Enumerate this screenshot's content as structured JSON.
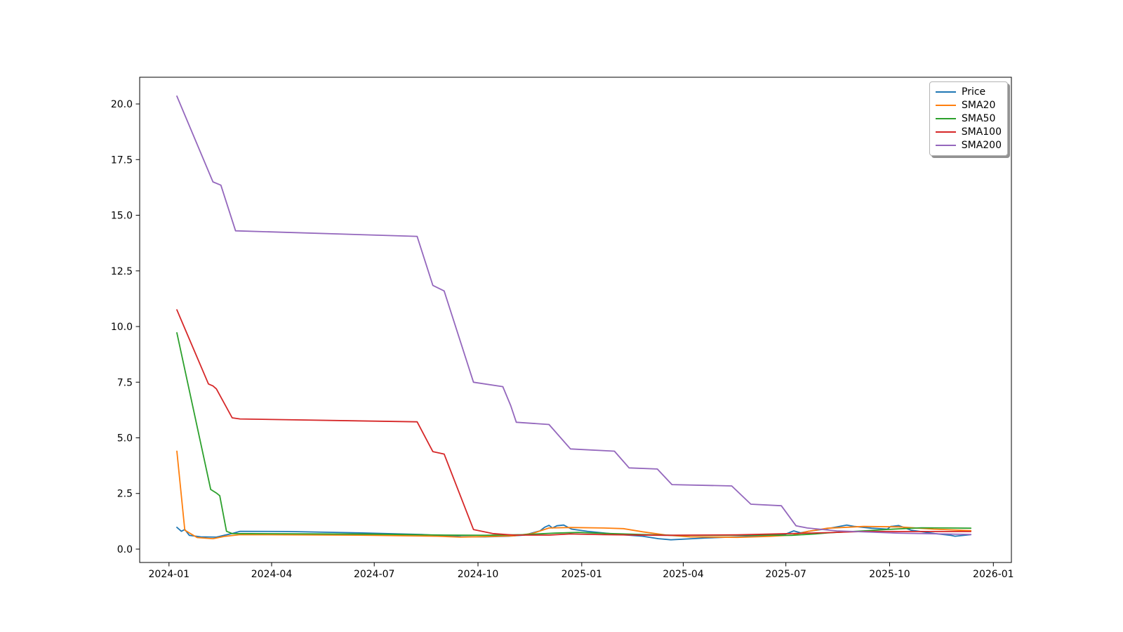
{
  "chart_data": {
    "type": "line",
    "title": "",
    "xlabel": "",
    "ylabel": "",
    "grid": false,
    "background": "#ffffff",
    "legend": {
      "position": "upper right",
      "shadow": true,
      "entries": [
        "Price",
        "SMA20",
        "SMA50",
        "SMA100",
        "SMA200"
      ]
    },
    "x_axis": {
      "range": [
        "2023-12-06",
        "2026-01-17"
      ],
      "tick_dates": [
        "2024-01-01",
        "2024-04-01",
        "2024-07-01",
        "2024-10-01",
        "2025-01-01",
        "2025-04-01",
        "2025-07-01",
        "2025-10-01",
        "2026-01-01"
      ],
      "tick_labels": [
        "2024-01",
        "2024-04",
        "2024-07",
        "2024-10",
        "2025-01",
        "2025-04",
        "2025-07",
        "2025-10",
        "2026-01"
      ]
    },
    "y_axis": {
      "range": [
        -0.6,
        21.2
      ],
      "ticks": [
        0.0,
        2.5,
        5.0,
        7.5,
        10.0,
        12.5,
        15.0,
        17.5,
        20.0
      ],
      "tick_labels": [
        "0.0",
        "2.5",
        "5.0",
        "7.5",
        "10.0",
        "12.5",
        "15.0",
        "17.5",
        "20.0"
      ]
    },
    "series": [
      {
        "name": "Price",
        "color": "#1f77b4",
        "points": [
          [
            "2024-01-08",
            0.98
          ],
          [
            "2024-01-12",
            0.8
          ],
          [
            "2024-01-15",
            0.88
          ],
          [
            "2024-01-19",
            0.62
          ],
          [
            "2024-01-29",
            0.55
          ],
          [
            "2024-02-12",
            0.54
          ],
          [
            "2024-02-19",
            0.62
          ],
          [
            "2024-02-26",
            0.7
          ],
          [
            "2024-03-04",
            0.8
          ],
          [
            "2024-04-15",
            0.79
          ],
          [
            "2024-06-17",
            0.73
          ],
          [
            "2024-08-12",
            0.66
          ],
          [
            "2024-09-02",
            0.6
          ],
          [
            "2024-09-16",
            0.56
          ],
          [
            "2024-10-07",
            0.55
          ],
          [
            "2024-10-28",
            0.58
          ],
          [
            "2024-11-11",
            0.63
          ],
          [
            "2024-11-25",
            0.82
          ],
          [
            "2024-11-29",
            0.98
          ],
          [
            "2024-12-03",
            1.07
          ],
          [
            "2024-12-06",
            0.95
          ],
          [
            "2024-12-10",
            1.05
          ],
          [
            "2024-12-16",
            1.08
          ],
          [
            "2024-12-23",
            0.9
          ],
          [
            "2025-01-06",
            0.8
          ],
          [
            "2025-02-03",
            0.66
          ],
          [
            "2025-02-24",
            0.58
          ],
          [
            "2025-03-10",
            0.47
          ],
          [
            "2025-03-21",
            0.42
          ],
          [
            "2025-04-21",
            0.5
          ],
          [
            "2025-05-19",
            0.55
          ],
          [
            "2025-06-16",
            0.62
          ],
          [
            "2025-06-30",
            0.66
          ],
          [
            "2025-07-08",
            0.82
          ],
          [
            "2025-07-14",
            0.73
          ],
          [
            "2025-07-21",
            0.8
          ],
          [
            "2025-08-07",
            0.92
          ],
          [
            "2025-08-24",
            1.08
          ],
          [
            "2025-08-31",
            1.02
          ],
          [
            "2025-09-15",
            0.94
          ],
          [
            "2025-09-29",
            0.9
          ],
          [
            "2025-10-02",
            1.02
          ],
          [
            "2025-10-09",
            1.06
          ],
          [
            "2025-10-20",
            0.85
          ],
          [
            "2025-11-10",
            0.7
          ],
          [
            "2025-11-24",
            0.62
          ],
          [
            "2025-11-28",
            0.58
          ],
          [
            "2025-12-12",
            0.65
          ]
        ]
      },
      {
        "name": "SMA20",
        "color": "#ff7f0e",
        "points": [
          [
            "2024-01-08",
            4.4
          ],
          [
            "2024-01-15",
            0.85
          ],
          [
            "2024-01-26",
            0.52
          ],
          [
            "2024-02-09",
            0.47
          ],
          [
            "2024-02-19",
            0.57
          ],
          [
            "2024-03-04",
            0.65
          ],
          [
            "2024-05-01",
            0.64
          ],
          [
            "2024-07-01",
            0.62
          ],
          [
            "2024-08-26",
            0.58
          ],
          [
            "2024-09-15",
            0.54
          ],
          [
            "2024-10-06",
            0.56
          ],
          [
            "2024-11-02",
            0.6
          ],
          [
            "2024-11-18",
            0.7
          ],
          [
            "2024-12-03",
            0.95
          ],
          [
            "2024-12-22",
            0.97
          ],
          [
            "2025-01-20",
            0.95
          ],
          [
            "2025-02-07",
            0.92
          ],
          [
            "2025-02-24",
            0.78
          ],
          [
            "2025-03-17",
            0.63
          ],
          [
            "2025-04-07",
            0.55
          ],
          [
            "2025-05-19",
            0.53
          ],
          [
            "2025-06-16",
            0.57
          ],
          [
            "2025-07-07",
            0.63
          ],
          [
            "2025-07-21",
            0.8
          ],
          [
            "2025-08-07",
            0.94
          ],
          [
            "2025-09-08",
            1.02
          ],
          [
            "2025-10-09",
            1.0
          ],
          [
            "2025-11-09",
            0.9
          ],
          [
            "2025-12-12",
            0.83
          ]
        ]
      },
      {
        "name": "SMA50",
        "color": "#2ca02c",
        "points": [
          [
            "2024-01-08",
            9.72
          ],
          [
            "2024-02-07",
            2.68
          ],
          [
            "2024-02-12",
            2.52
          ],
          [
            "2024-02-15",
            2.4
          ],
          [
            "2024-02-21",
            0.8
          ],
          [
            "2024-02-26",
            0.7
          ],
          [
            "2024-04-15",
            0.69
          ],
          [
            "2024-07-01",
            0.67
          ],
          [
            "2024-09-02",
            0.63
          ],
          [
            "2024-10-07",
            0.62
          ],
          [
            "2024-11-10",
            0.65
          ],
          [
            "2024-12-08",
            0.72
          ],
          [
            "2024-12-29",
            0.75
          ],
          [
            "2025-01-26",
            0.7
          ],
          [
            "2025-02-23",
            0.66
          ],
          [
            "2025-03-23",
            0.62
          ],
          [
            "2025-05-04",
            0.62
          ],
          [
            "2025-06-15",
            0.63
          ],
          [
            "2025-07-06",
            0.62
          ],
          [
            "2025-07-27",
            0.68
          ],
          [
            "2025-08-07",
            0.73
          ],
          [
            "2025-09-08",
            0.82
          ],
          [
            "2025-10-09",
            0.91
          ],
          [
            "2025-10-29",
            0.96
          ],
          [
            "2025-11-23",
            0.95
          ],
          [
            "2025-12-12",
            0.94
          ]
        ]
      },
      {
        "name": "SMA100",
        "color": "#d62728",
        "points": [
          [
            "2024-01-08",
            10.75
          ],
          [
            "2024-02-05",
            7.42
          ],
          [
            "2024-02-09",
            7.33
          ],
          [
            "2024-02-12",
            7.2
          ],
          [
            "2024-02-26",
            5.9
          ],
          [
            "2024-03-04",
            5.85
          ],
          [
            "2024-08-08",
            5.72
          ],
          [
            "2024-08-22",
            4.38
          ],
          [
            "2024-09-01",
            4.27
          ],
          [
            "2024-09-27",
            0.88
          ],
          [
            "2024-10-14",
            0.7
          ],
          [
            "2024-11-02",
            0.63
          ],
          [
            "2024-12-03",
            0.63
          ],
          [
            "2024-12-22",
            0.68
          ],
          [
            "2025-01-20",
            0.65
          ],
          [
            "2025-03-17",
            0.62
          ],
          [
            "2025-05-19",
            0.64
          ],
          [
            "2025-06-27",
            0.69
          ],
          [
            "2025-08-07",
            0.74
          ],
          [
            "2025-09-08",
            0.79
          ],
          [
            "2025-12-12",
            0.79
          ]
        ]
      },
      {
        "name": "SMA200",
        "color": "#9467bd",
        "points": [
          [
            "2024-01-08",
            20.35
          ],
          [
            "2024-02-09",
            16.5
          ],
          [
            "2024-02-16",
            16.35
          ],
          [
            "2024-02-29",
            14.3
          ],
          [
            "2024-08-08",
            14.05
          ],
          [
            "2024-08-22",
            11.85
          ],
          [
            "2024-09-01",
            11.6
          ],
          [
            "2024-09-27",
            7.5
          ],
          [
            "2024-10-23",
            7.3
          ],
          [
            "2024-10-30",
            6.45
          ],
          [
            "2024-11-04",
            5.7
          ],
          [
            "2024-12-03",
            5.6
          ],
          [
            "2024-12-22",
            4.5
          ],
          [
            "2025-01-30",
            4.4
          ],
          [
            "2025-02-12",
            3.65
          ],
          [
            "2025-03-09",
            3.6
          ],
          [
            "2025-03-22",
            2.9
          ],
          [
            "2025-05-14",
            2.84
          ],
          [
            "2025-05-31",
            2.02
          ],
          [
            "2025-06-27",
            1.95
          ],
          [
            "2025-07-10",
            1.05
          ],
          [
            "2025-07-20",
            0.95
          ],
          [
            "2025-08-15",
            0.82
          ],
          [
            "2025-10-09",
            0.72
          ],
          [
            "2025-12-12",
            0.66
          ]
        ]
      }
    ]
  }
}
